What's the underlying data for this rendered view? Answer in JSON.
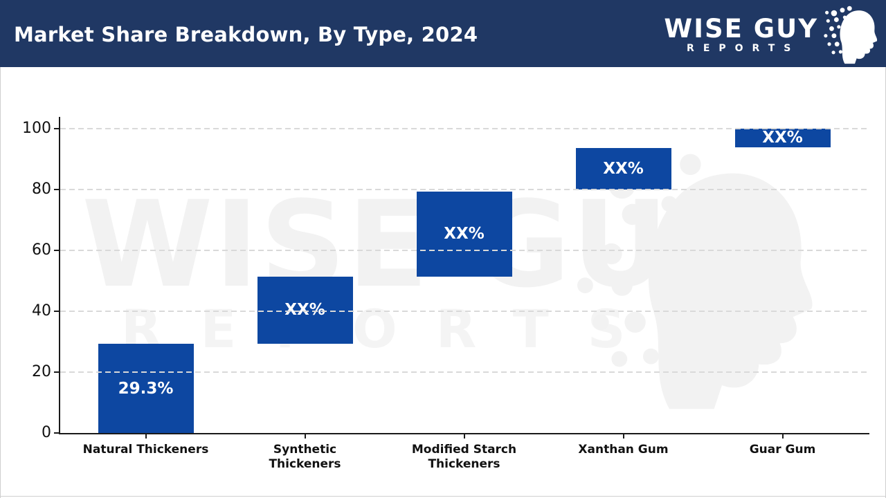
{
  "header": {
    "title": "Market Share Breakdown, By Type, 2024",
    "brand": {
      "line1": "WISE GUY",
      "line2": "REPORTS"
    }
  },
  "watermark": {
    "line1": "WISE GUY",
    "line2": "REPORTS"
  },
  "colors": {
    "header_bg": "#203864",
    "bar": "#0d47a1",
    "gridline": "#d9d9d9",
    "axis": "#1a1a1a",
    "value_label": "#ffffff",
    "watermark": "#f2f2f2"
  },
  "chart_data": {
    "type": "bar",
    "subtype": "waterfall",
    "title": "Market Share Breakdown, By Type, 2024",
    "xlabel": "",
    "ylabel": "",
    "ylim": [
      0,
      100
    ],
    "yticks": [
      0,
      20,
      40,
      60,
      80,
      100
    ],
    "grid": "horizontal-dashed",
    "legend": "none",
    "categories": [
      "Natural Thickeners",
      "Synthetic Thickeners",
      "Modified Starch Thickeners",
      "Xanthan Gum",
      "Guar Gum"
    ],
    "bars": [
      {
        "category": "Natural Thickeners",
        "label_lines": "Natural Thickeners",
        "start": 0,
        "end": 29.3,
        "value_label": "29.3%"
      },
      {
        "category": "Synthetic Thickeners",
        "label_lines": "Synthetic\nThickeners",
        "start": 29.4,
        "end": 51.3,
        "value_label": "XX%"
      },
      {
        "category": "Modified Starch Thickeners",
        "label_lines": "Modified Starch\nThickeners",
        "start": 51.4,
        "end": 79.4,
        "value_label": "XX%"
      },
      {
        "category": "Xanthan Gum",
        "label_lines": "Xanthan Gum",
        "start": 80.0,
        "end": 93.6,
        "value_label": "XX%"
      },
      {
        "category": "Guar Gum",
        "label_lines": "Guar Gum",
        "start": 93.9,
        "end": 100.0,
        "value_label": "XX%"
      }
    ]
  }
}
